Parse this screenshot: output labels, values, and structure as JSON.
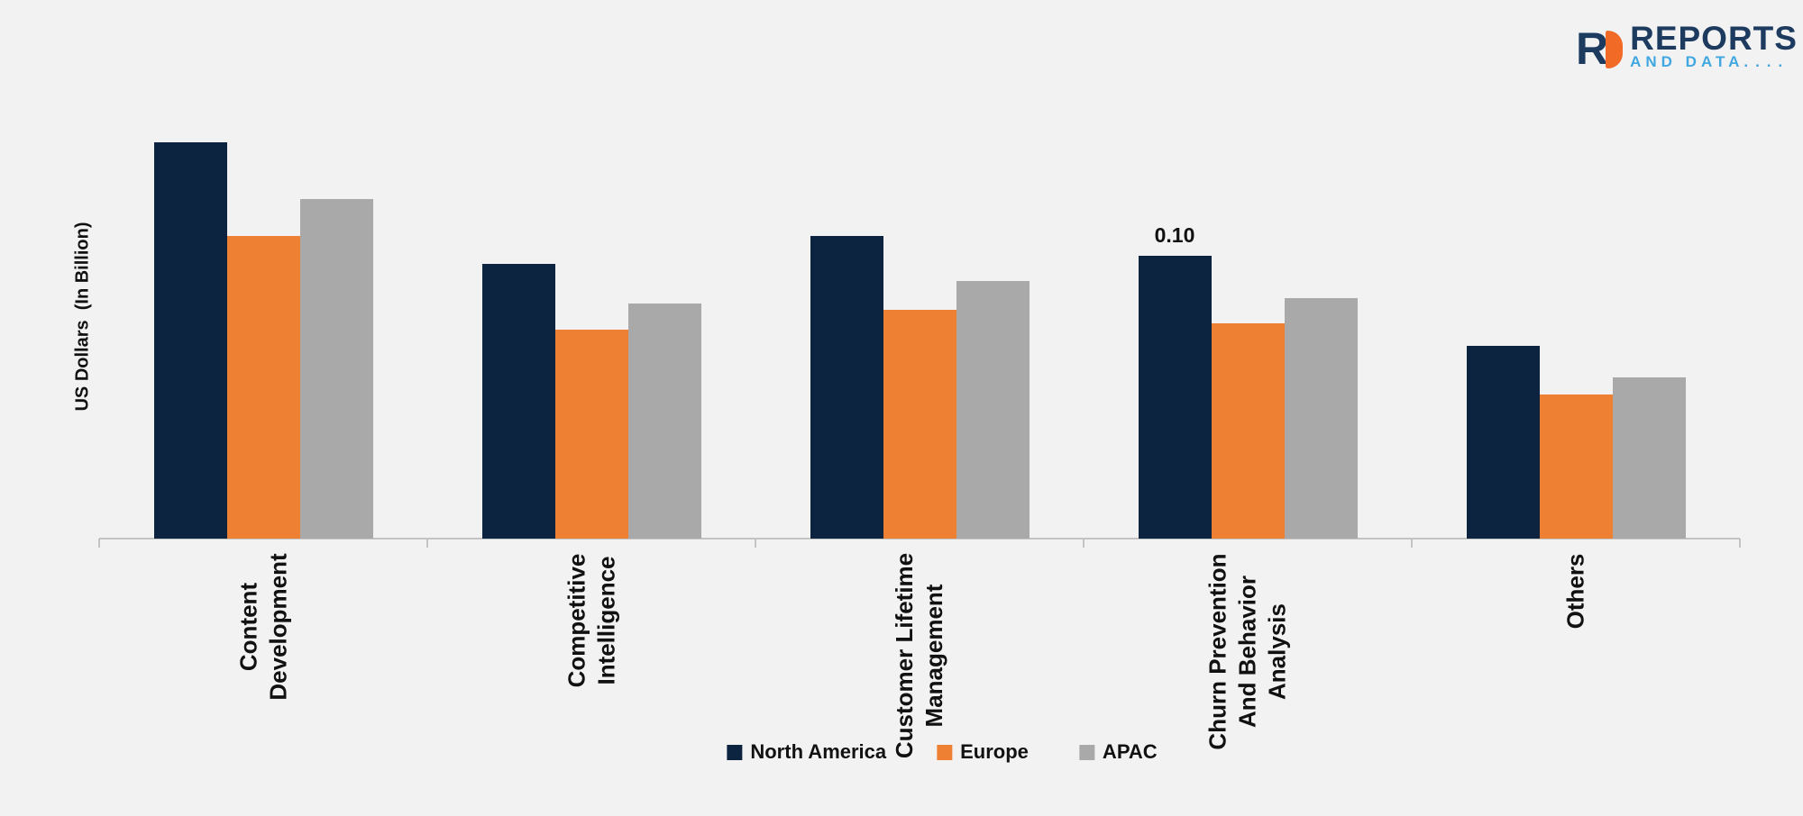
{
  "background": "#f2f2f2",
  "logo": {
    "icon_r": "R",
    "brand_top": "REPORTS",
    "brand_bottom": "AND DATA",
    "dots": "....",
    "colors": {
      "navy": "#1d3a5f",
      "blue": "#41a7e0",
      "orange": "#f16a26"
    }
  },
  "chart_data": {
    "type": "bar",
    "title": "",
    "xlabel": "",
    "ylabel": "US Dollars  (In Billion)",
    "ylim": [
      0,
      0.15
    ],
    "gridlines": false,
    "axis_color": "#c3c3c3",
    "legend_position": "bottom-center",
    "categories": [
      "Content Development",
      "Competitive Intelligence",
      "Customer Lifetime Management",
      "Churn Prevention And Behavior Analysis",
      "Others"
    ],
    "category_display_lines": [
      [
        "Content",
        "Development"
      ],
      [
        "Competitive",
        "Intelligence"
      ],
      [
        "Customer Lifetime",
        "Management"
      ],
      [
        "Churn Prevention",
        "And Behavior",
        "Analysis"
      ],
      [
        "Others"
      ]
    ],
    "series": [
      {
        "name": "North America",
        "color": "#0d2440",
        "values": [
          0.14,
          0.097,
          0.107,
          0.1,
          0.068
        ]
      },
      {
        "name": "Europe",
        "color": "#ee8033",
        "values": [
          0.107,
          0.074,
          0.081,
          0.076,
          0.051
        ]
      },
      {
        "name": "APAC",
        "color": "#a9a9a9",
        "values": [
          0.12,
          0.083,
          0.091,
          0.085,
          0.057
        ]
      }
    ],
    "data_labels": [
      {
        "series_index": 0,
        "category_index": 3,
        "text": "0.10"
      }
    ]
  }
}
